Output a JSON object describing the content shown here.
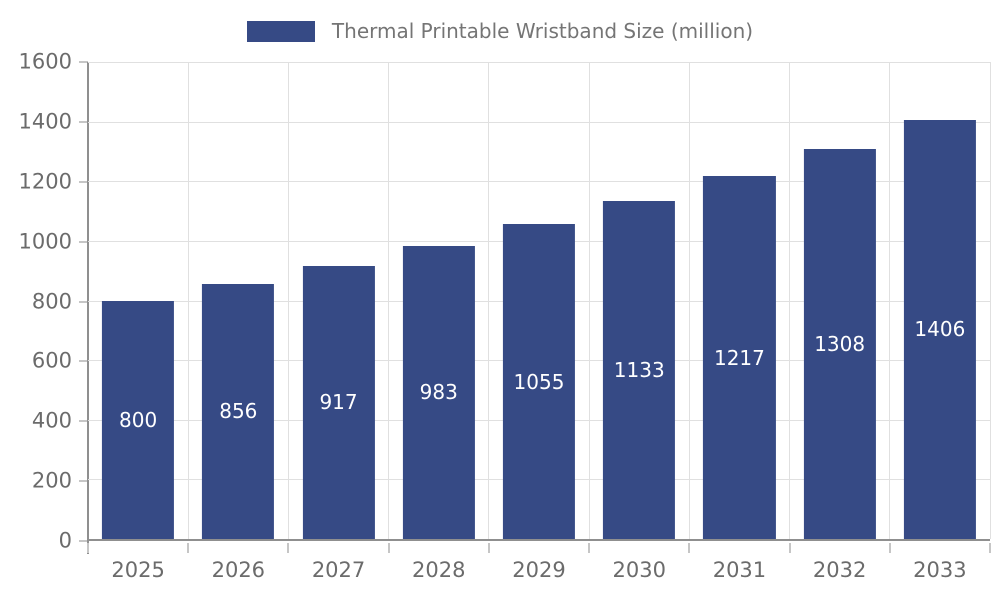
{
  "chart_data": {
    "type": "bar",
    "title": "Thermal Printable Wristband Size (million)",
    "categories": [
      "2025",
      "2026",
      "2027",
      "2028",
      "2029",
      "2030",
      "2031",
      "2032",
      "2033"
    ],
    "values": [
      800,
      856,
      917,
      983,
      1055,
      1133,
      1217,
      1308,
      1406
    ],
    "xlabel": "",
    "ylabel": "",
    "ylim": [
      0,
      1600
    ],
    "yticks": [
      0,
      200,
      400,
      600,
      800,
      1000,
      1200,
      1400,
      1600
    ],
    "grid": true,
    "legend_position": "top",
    "bar_label_position": "inside-center"
  },
  "legend": {
    "label": "Thermal Printable Wristband Size (million)"
  },
  "colors": {
    "bar": "#364a85",
    "bar_value_label": "#ffffff",
    "legend_text": "#757575",
    "axis_label": "#6b6b6b",
    "gridline": "#e0e0e0",
    "axis_line": "#8f8f8f",
    "tick": "#c6c6c6",
    "background": "#ffffff"
  }
}
